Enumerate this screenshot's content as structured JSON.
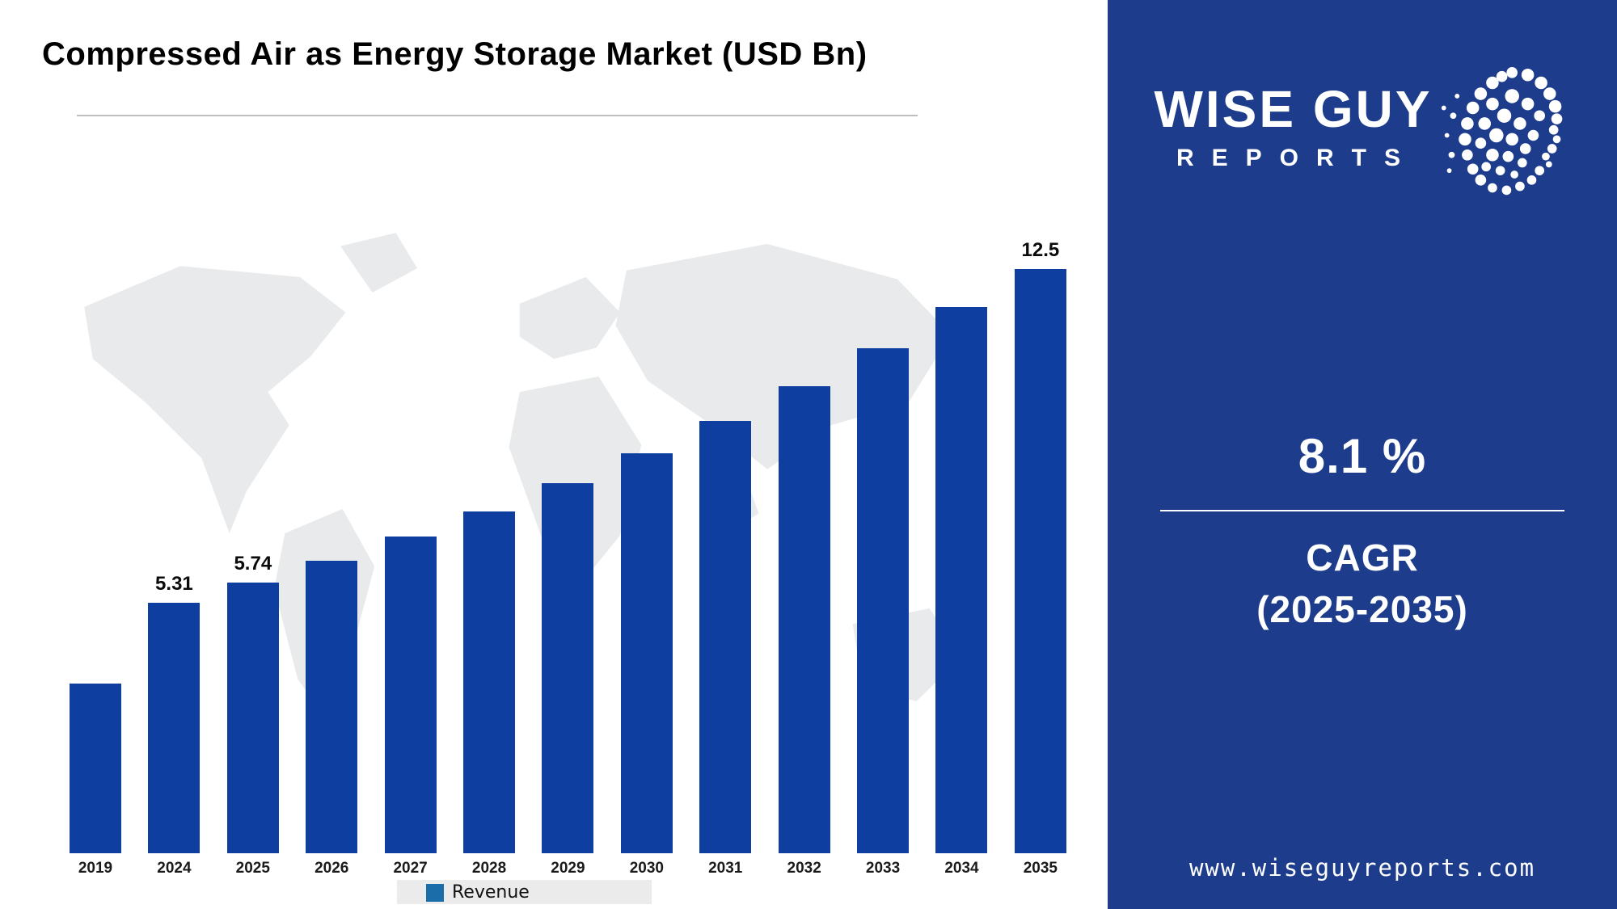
{
  "chart_data": {
    "type": "bar",
    "title": "Compressed Air as Energy Storage Market (USD Bn)",
    "categories": [
      "2019",
      "2024",
      "2025",
      "2026",
      "2027",
      "2028",
      "2029",
      "2030",
      "2031",
      "2032",
      "2033",
      "2034",
      "2035"
    ],
    "values": [
      3.6,
      5.31,
      5.74,
      6.2,
      6.71,
      7.25,
      7.84,
      8.47,
      9.16,
      9.9,
      10.71,
      11.57,
      12.5
    ],
    "data_labels": [
      "",
      "5.31",
      "5.74",
      "",
      "",
      "",
      "",
      "",
      "",
      "",
      "",
      "",
      "12.5"
    ],
    "ylim": [
      0,
      12.5
    ],
    "grid": false,
    "bar_color": "#0e3fa0",
    "legend_position": "bottom",
    "legend": [
      {
        "label": "Revenue",
        "color": "#1a6da8"
      }
    ]
  },
  "sidebar": {
    "bg_color": "#1d3c8c",
    "logo_line1": "WISE GUY",
    "logo_line2": "REPORTS",
    "cagr_value": "8.1 %",
    "cagr_label": "CAGR",
    "cagr_period": "(2025-2035)",
    "website": "www.wiseguyreports.com"
  }
}
